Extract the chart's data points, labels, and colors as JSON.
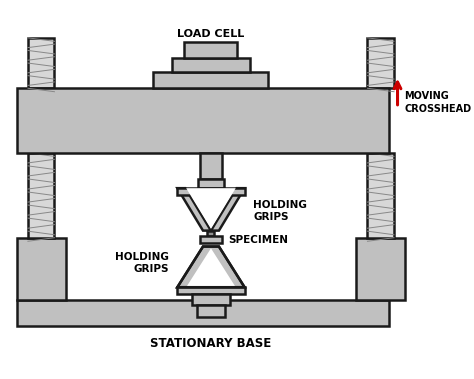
{
  "background_color": "#ffffff",
  "gray_fill": "#c0c0c0",
  "edge_color": "#1a1a1a",
  "red_color": "#cc0000",
  "text_color": "#000000",
  "label_load_cell": "LOAD CELL",
  "label_holding_grips_top": "HOLDING\nGRIPS",
  "label_holding_grips_bottom": "HOLDING\nGRIPS",
  "label_specimen": "SPECIMEN",
  "label_moving_crosshead": "MOVING\nCROSSHEAD",
  "label_stationary_base": "STATIONARY BASE",
  "font_size_labels": 7.5,
  "font_size_base": 8.5,
  "lw": 1.8,
  "thread_color": "#888888",
  "thread_lw": 0.7
}
